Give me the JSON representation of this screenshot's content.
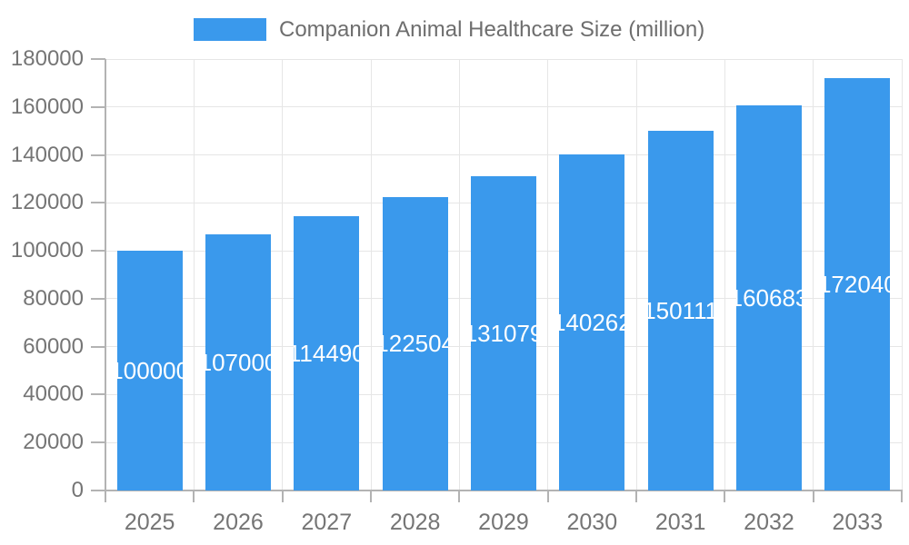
{
  "chart_data": {
    "type": "bar",
    "title": "Companion Animal Healthcare Size (million)",
    "categories": [
      "2025",
      "2026",
      "2027",
      "2028",
      "2029",
      "2030",
      "2031",
      "2032",
      "2033"
    ],
    "values": [
      100000,
      107000,
      114490,
      122504,
      131079,
      140262,
      150111,
      160683,
      172040
    ],
    "bar_labels": [
      "100000",
      "107000",
      "114490",
      "122504",
      "131079",
      "140262",
      "150111",
      "160683",
      "172040"
    ],
    "xlabel": "",
    "ylabel": "",
    "ylim": [
      0,
      180000
    ],
    "yticks": [
      0,
      20000,
      40000,
      60000,
      80000,
      100000,
      120000,
      140000,
      160000,
      180000
    ],
    "grid": true,
    "legend_position": "top",
    "colors": {
      "bar": "#3A99EC",
      "grid_line": "#E6E6E6",
      "axis_line": "#B3B3B3",
      "tick_text": "#757575",
      "title_text": "#6E6E6E",
      "bar_label_text": "#FFFFFF",
      "background": "#FFFFFF"
    }
  }
}
